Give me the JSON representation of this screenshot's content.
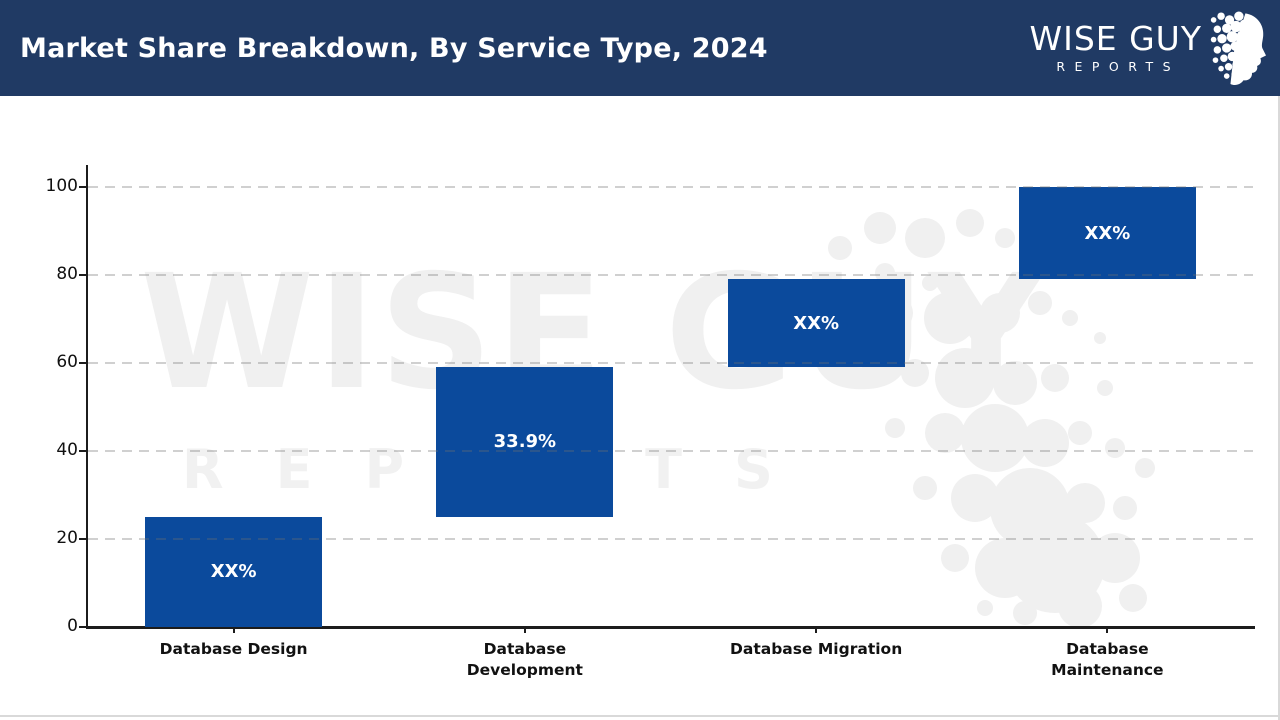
{
  "header": {
    "title": "Market Share Breakdown, By Service Type, 2024",
    "bg_color": "#203a64",
    "logo": {
      "wordmark": "WISE GUY",
      "subtext": "REPORTS"
    }
  },
  "watermark": {
    "line1": "WISE GUY",
    "line2": "REPORTS"
  },
  "chart_data": {
    "type": "bar",
    "variant": "floating-segment (stacked waterfall of market share)",
    "title": "Market Share Breakdown, By Service Type, 2024",
    "categories": [
      "Database Design",
      "Database Development",
      "Database Migration",
      "Database Maintenance"
    ],
    "category_label_lines": [
      [
        "Database Design"
      ],
      [
        "Database",
        "Development"
      ],
      [
        "Database Migration"
      ],
      [
        "Database",
        "Maintenance"
      ]
    ],
    "segments": [
      {
        "category": "Database Design",
        "start": 0,
        "end": 25.1,
        "label": "XX%"
      },
      {
        "category": "Database Development",
        "start": 25.1,
        "end": 59.0,
        "label": "33.9%"
      },
      {
        "category": "Database Migration",
        "start": 59.0,
        "end": 79.0,
        "label": "XX%"
      },
      {
        "category": "Database Maintenance",
        "start": 79.0,
        "end": 100.0,
        "label": "XX%"
      }
    ],
    "ylim": [
      0,
      100
    ],
    "yticks": [
      0,
      20,
      40,
      60,
      80,
      100
    ],
    "grid": "horizontal dashed, drawn over bars",
    "legend": "none",
    "bar_color": "#0b4a9c",
    "bar_label_color": "#ffffff",
    "axis_color": "#1c1c1c",
    "gridline_color": "#cccccc"
  }
}
